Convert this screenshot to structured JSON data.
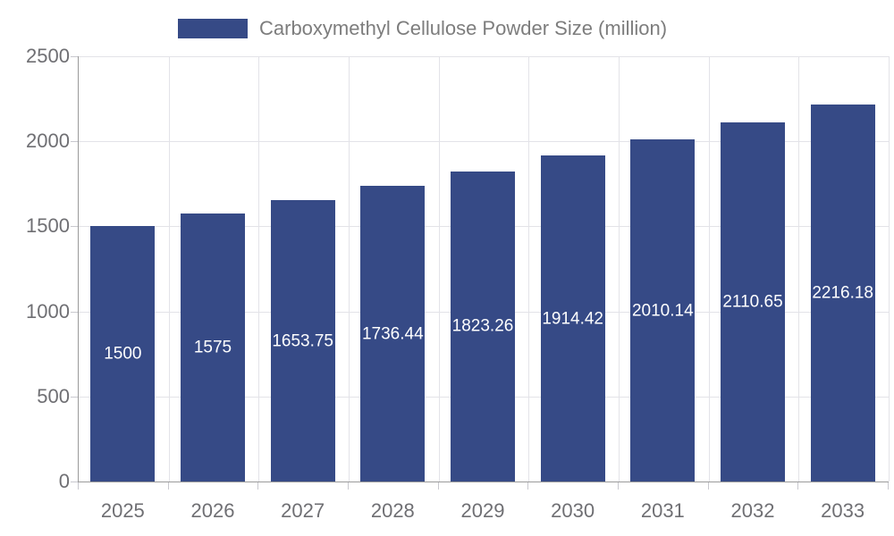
{
  "chart_data": {
    "type": "bar",
    "legend": "Carboxymethyl Cellulose Powder Size (million)",
    "categories": [
      "2025",
      "2026",
      "2027",
      "2028",
      "2029",
      "2030",
      "2031",
      "2032",
      "2033"
    ],
    "values": [
      1500,
      1575,
      1653.75,
      1736.44,
      1823.26,
      1914.42,
      2010.14,
      2110.65,
      2216.18
    ],
    "value_labels": [
      "1500",
      "1575",
      "1653.75",
      "1736.44",
      "1823.26",
      "1914.42",
      "2010.14",
      "2110.65",
      "2216.18"
    ],
    "title": "",
    "xlabel": "",
    "ylabel": "",
    "ylim": [
      0,
      2500
    ],
    "yticks": [
      0,
      500,
      1000,
      1500,
      2000,
      2500
    ],
    "grid": true,
    "legend_position": "top",
    "bar_color": "#364A86",
    "value_label_color": "#FFFFFF"
  },
  "colors": {
    "bar": "#364A86",
    "background": "#FFFFFF",
    "axis_label": "#6F6F73",
    "legend_text": "#7D7D7D",
    "grid_line": "#E3E3E8",
    "axis_line": "#9A9A9A",
    "tick": "#C8C8CE"
  }
}
